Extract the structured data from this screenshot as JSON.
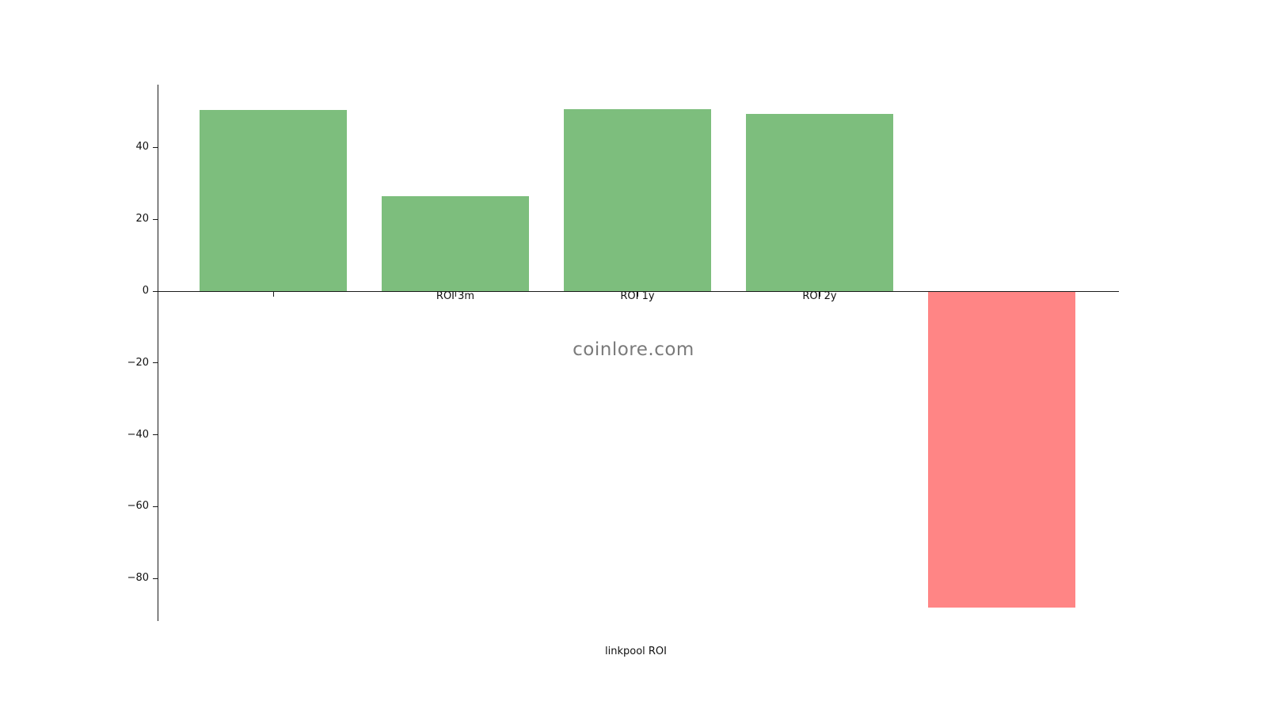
{
  "watermark": "coinlore.com",
  "chart_data": {
    "type": "bar",
    "title": "",
    "xlabel": "linkpool ROI",
    "ylabel": "",
    "categories": [
      "",
      "ROI 3m",
      "ROI 1y",
      "ROI 2y",
      ""
    ],
    "values": [
      50.5,
      26.5,
      50.7,
      49.3,
      -88
    ],
    "yticks": [
      40,
      20,
      0,
      -20,
      -40,
      -60,
      -80
    ],
    "ylim": [
      -97,
      57
    ],
    "grid": false,
    "legend": null,
    "positive_color": "#7dbe7d",
    "negative_color": "#ff8585",
    "axis_color": "#1a1a1a",
    "tick_label_color": "#111111",
    "watermark_color": "#7a7a7a"
  }
}
